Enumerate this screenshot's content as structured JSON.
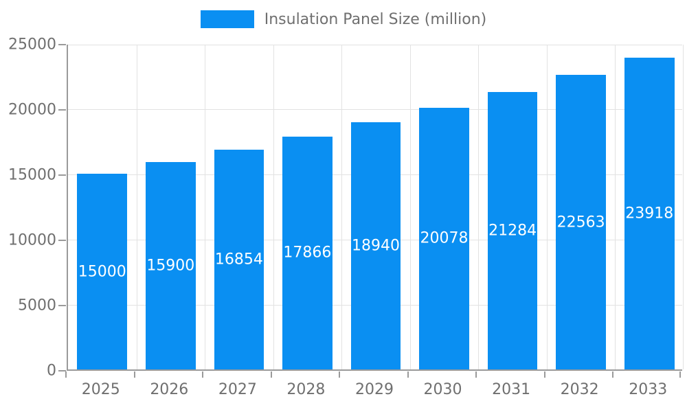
{
  "chart_data": {
    "type": "bar",
    "title": "",
    "legend_label": "Insulation Panel Size (million)",
    "legend_position": "top",
    "categories": [
      "2025",
      "2026",
      "2027",
      "2028",
      "2029",
      "2030",
      "2031",
      "2032",
      "2033"
    ],
    "values": [
      15000,
      15900,
      16854,
      17866,
      18940,
      20078,
      21284,
      22563,
      23918
    ],
    "xlabel": "",
    "ylabel": "",
    "ylim": [
      0,
      25000
    ],
    "ytick_step": 5000,
    "ytick_labels": [
      "0",
      "5000",
      "10000",
      "15000",
      "20000",
      "25000"
    ],
    "grid": "horizontal-and-vertical",
    "value_labels_inside_bars": true,
    "colors": {
      "bar": "#0a8ff2",
      "value_label": "#ffffff",
      "axis_text": "#6f6f6f",
      "grid_line": "#e2e2e2",
      "axis_line": "#9a9a9a",
      "background": "#ffffff"
    }
  }
}
